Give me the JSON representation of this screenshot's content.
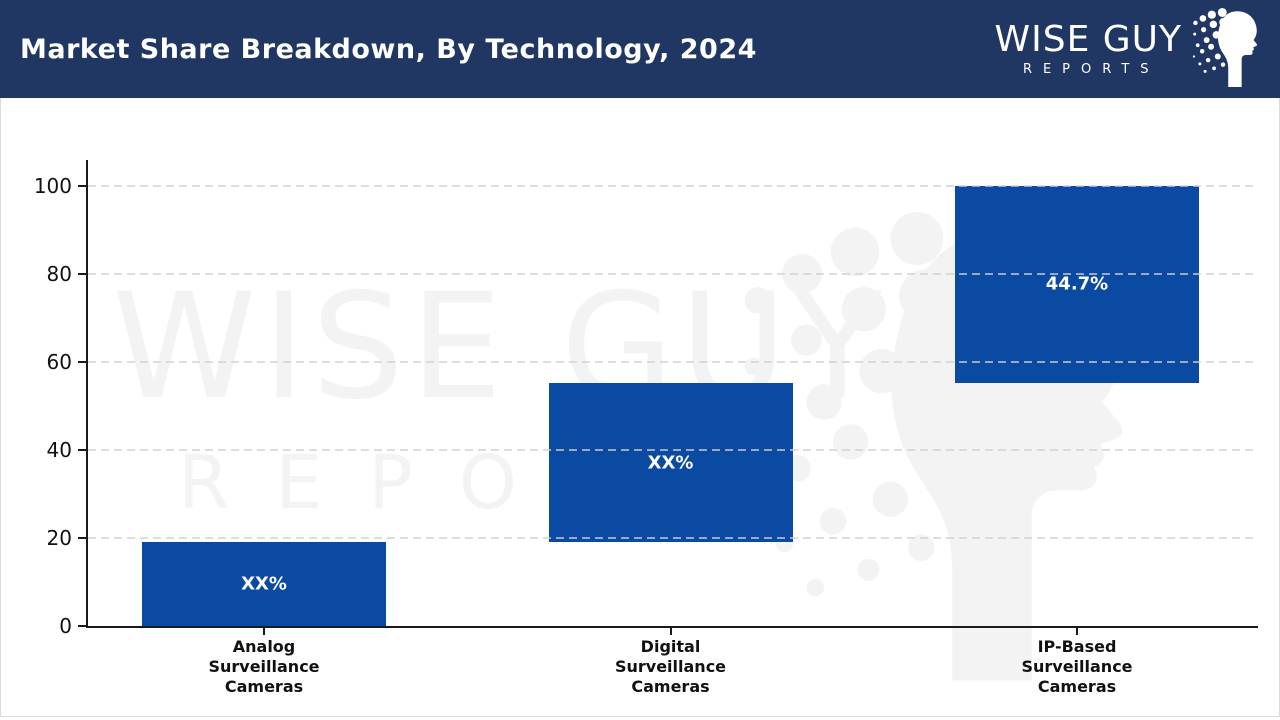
{
  "header": {
    "title": "Market Share Breakdown, By Technology, 2024",
    "logo": {
      "wordmark": "WISE GUY",
      "subtitle": "REPORTS"
    }
  },
  "watermark": {
    "wordmark": "WISE GUY",
    "subtitle": "REPORTS"
  },
  "colors": {
    "header_bg": "#213763",
    "bar": "#0B4AA2",
    "gridline": "#D0D0D0",
    "axis": "#1A1A1A",
    "value_label_text": "#FFFFFF",
    "watermark": "#F3F3F3"
  },
  "chart_data": {
    "type": "bar",
    "variant": "waterfall-stacked-share",
    "title": "Market Share Breakdown, By Technology, 2024",
    "categories": [
      "Analog Surveillance Cameras",
      "Digital Surveillance Cameras",
      "IP-Based Surveillance Cameras"
    ],
    "bars": [
      {
        "category": "Analog Surveillance Cameras",
        "start": 0,
        "end": 19,
        "label": "XX%"
      },
      {
        "category": "Digital Surveillance Cameras",
        "start": 19,
        "end": 55.3,
        "label": "XX%"
      },
      {
        "category": "IP-Based Surveillance Cameras",
        "start": 55.3,
        "end": 100,
        "label": "44.7%"
      }
    ],
    "yticks": [
      0,
      20,
      40,
      60,
      80,
      100
    ],
    "ylim": [
      0,
      105.9
    ],
    "xlabel": "",
    "ylabel": "",
    "grid": "horizontal-dashed-over-bars",
    "legend": "none"
  }
}
